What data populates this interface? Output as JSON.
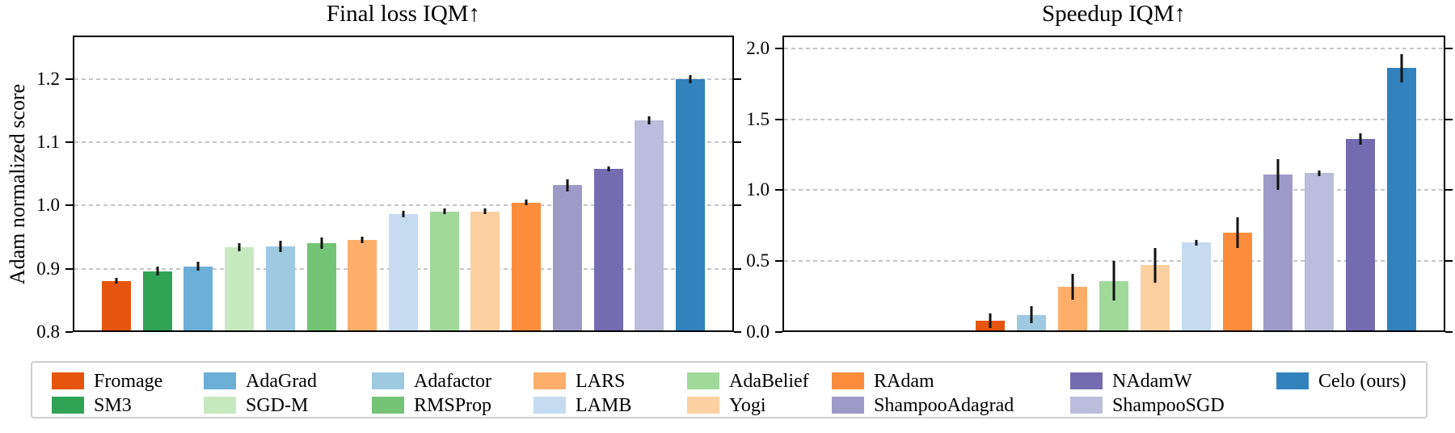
{
  "figure": {
    "ylabel": "Adam normalized score",
    "background": "#ffffff",
    "grid_color": "#c6c6c6",
    "errorbar_color": "#111111"
  },
  "chart_data": [
    {
      "type": "bar",
      "title": "Final loss IQM↑",
      "ylabel": "Adam normalized score",
      "xlabel": "",
      "grid": true,
      "legend_position": "bottom",
      "ylim": [
        0.8,
        1.269
      ],
      "yticks": [
        {
          "value": 0.8,
          "label": "0.8"
        },
        {
          "value": 0.9,
          "label": "0.9"
        },
        {
          "value": 1.0,
          "label": "1.0"
        },
        {
          "value": 1.1,
          "label": "1.1"
        },
        {
          "value": 1.2,
          "label": "1.2"
        }
      ],
      "categories": [
        "Fromage",
        "SM3",
        "AdaGrad",
        "SGD-M",
        "Adafactor",
        "RMSProp",
        "LARS",
        "LAMB",
        "AdaBelief",
        "Yogi",
        "RAdam",
        "ShampooAdagrad",
        "NAdamW",
        "ShampooSGD",
        "Celo (ours)"
      ],
      "values": [
        0.881,
        0.896,
        0.904,
        0.934,
        0.935,
        0.941,
        0.946,
        0.987,
        0.991,
        0.991,
        1.005,
        1.032,
        1.058,
        1.135,
        1.2
      ],
      "errors": [
        0.004,
        0.007,
        0.007,
        0.006,
        0.009,
        0.009,
        0.005,
        0.005,
        0.005,
        0.004,
        0.005,
        0.01,
        0.004,
        0.006,
        0.007
      ],
      "colors": [
        "#e6550d",
        "#31a354",
        "#6baed6",
        "#c7e9c0",
        "#9ecae1",
        "#74c476",
        "#fdae6b",
        "#c6dbef",
        "#a1d99b",
        "#fdd0a2",
        "#fd8d3c",
        "#9e9ac8",
        "#756bb1",
        "#bcbddc",
        "#3182bd"
      ]
    },
    {
      "type": "bar",
      "title": "Speedup IQM↑",
      "ylabel": "",
      "xlabel": "",
      "grid": true,
      "legend_position": "bottom",
      "ylim": [
        0.0,
        2.09
      ],
      "yticks": [
        {
          "value": 0.0,
          "label": "0.0"
        },
        {
          "value": 0.5,
          "label": "0.5"
        },
        {
          "value": 1.0,
          "label": "1.0"
        },
        {
          "value": 1.5,
          "label": "1.5"
        },
        {
          "value": 2.0,
          "label": "2.0"
        }
      ],
      "categories": [
        "SM3",
        "AdaGrad",
        "SGD-M",
        "RMSProp",
        "Fromage",
        "Adafactor",
        "LARS",
        "AdaBelief",
        "Yogi",
        "LAMB",
        "RAdam",
        "ShampooAdagrad",
        "ShampooSGD",
        "NAdamW",
        "Celo (ours)"
      ],
      "values": [
        0.0,
        0.0,
        0.0,
        0.0,
        0.08,
        0.12,
        0.32,
        0.36,
        0.47,
        0.63,
        0.7,
        1.11,
        1.12,
        1.36,
        1.86
      ],
      "errors": [
        0.0,
        0.0,
        0.0,
        0.0,
        0.05,
        0.06,
        0.09,
        0.14,
        0.12,
        0.02,
        0.11,
        0.11,
        0.02,
        0.04,
        0.1
      ],
      "colors": [
        "#31a354",
        "#6baed6",
        "#c7e9c0",
        "#74c476",
        "#e6550d",
        "#9ecae1",
        "#fdae6b",
        "#a1d99b",
        "#fdd0a2",
        "#c6dbef",
        "#fd8d3c",
        "#9e9ac8",
        "#bcbddc",
        "#756bb1",
        "#3182bd"
      ]
    }
  ],
  "legend": {
    "columns": [
      {
        "items": [
          {
            "label": "Fromage",
            "color": "#e6550d"
          },
          {
            "label": "SM3",
            "color": "#31a354"
          }
        ]
      },
      {
        "items": [
          {
            "label": "AdaGrad",
            "color": "#6baed6"
          },
          {
            "label": "SGD-M",
            "color": "#c7e9c0"
          }
        ]
      },
      {
        "items": [
          {
            "label": "Adafactor",
            "color": "#9ecae1"
          },
          {
            "label": "RMSProp",
            "color": "#74c476"
          }
        ]
      },
      {
        "items": [
          {
            "label": "LARS",
            "color": "#fdae6b"
          },
          {
            "label": "LAMB",
            "color": "#c6dbef"
          }
        ]
      },
      {
        "items": [
          {
            "label": "AdaBelief",
            "color": "#a1d99b"
          },
          {
            "label": "Yogi",
            "color": "#fdd0a2"
          }
        ]
      },
      {
        "items": [
          {
            "label": "RAdam",
            "color": "#fd8d3c"
          },
          {
            "label": "ShampooAdagrad",
            "color": "#9e9ac8"
          }
        ]
      },
      {
        "items": [
          {
            "label": "NAdamW",
            "color": "#756bb1"
          },
          {
            "label": "ShampooSGD",
            "color": "#bcbddc"
          }
        ]
      },
      {
        "items": [
          {
            "label": "Celo (ours)",
            "color": "#3182bd"
          }
        ]
      }
    ]
  }
}
